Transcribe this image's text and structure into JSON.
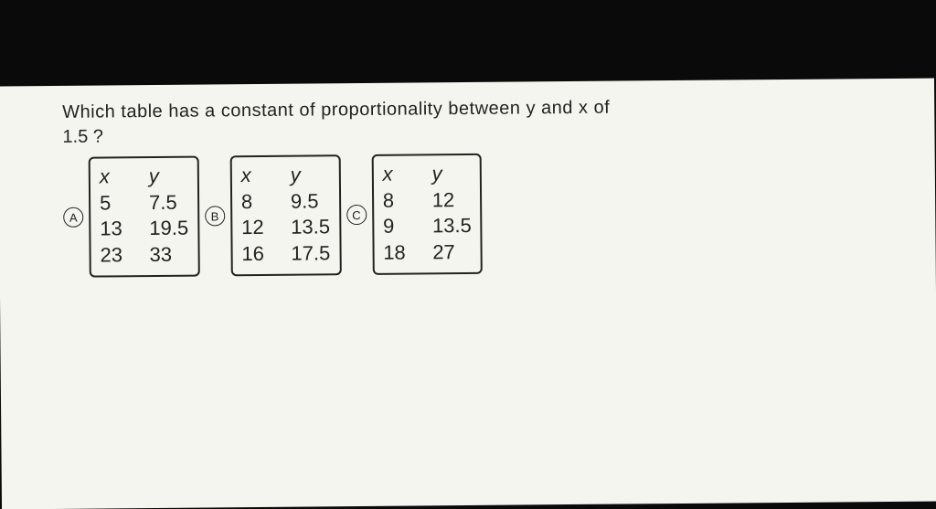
{
  "question": {
    "line1": "Which table has a constant of proportionality between y and x of",
    "line2": "1.5 ?"
  },
  "labels": {
    "a": "A",
    "b": "B",
    "c": "C"
  },
  "tableA": {
    "header": {
      "x": "x",
      "y": "y"
    },
    "rows": [
      {
        "x": "5",
        "y": "7.5"
      },
      {
        "x": "13",
        "y": "19.5"
      },
      {
        "x": "23",
        "y": "33"
      }
    ]
  },
  "tableB": {
    "header": {
      "x": "x",
      "y": "y"
    },
    "rows": [
      {
        "x": "8",
        "y": "9.5"
      },
      {
        "x": "12",
        "y": "13.5"
      },
      {
        "x": "16",
        "y": "17.5"
      }
    ]
  },
  "tableC": {
    "header": {
      "x": "x",
      "y": "y"
    },
    "rows": [
      {
        "x": "8",
        "y": "12"
      },
      {
        "x": "9",
        "y": "13.5"
      },
      {
        "x": "18",
        "y": "27"
      }
    ]
  },
  "styling": {
    "background_color": "#0a0a0a",
    "paper_color": "#f5f5f0",
    "ink_color": "#222222",
    "font_family": "handwritten",
    "table_border_width": 2,
    "table_border_radius": 6
  }
}
